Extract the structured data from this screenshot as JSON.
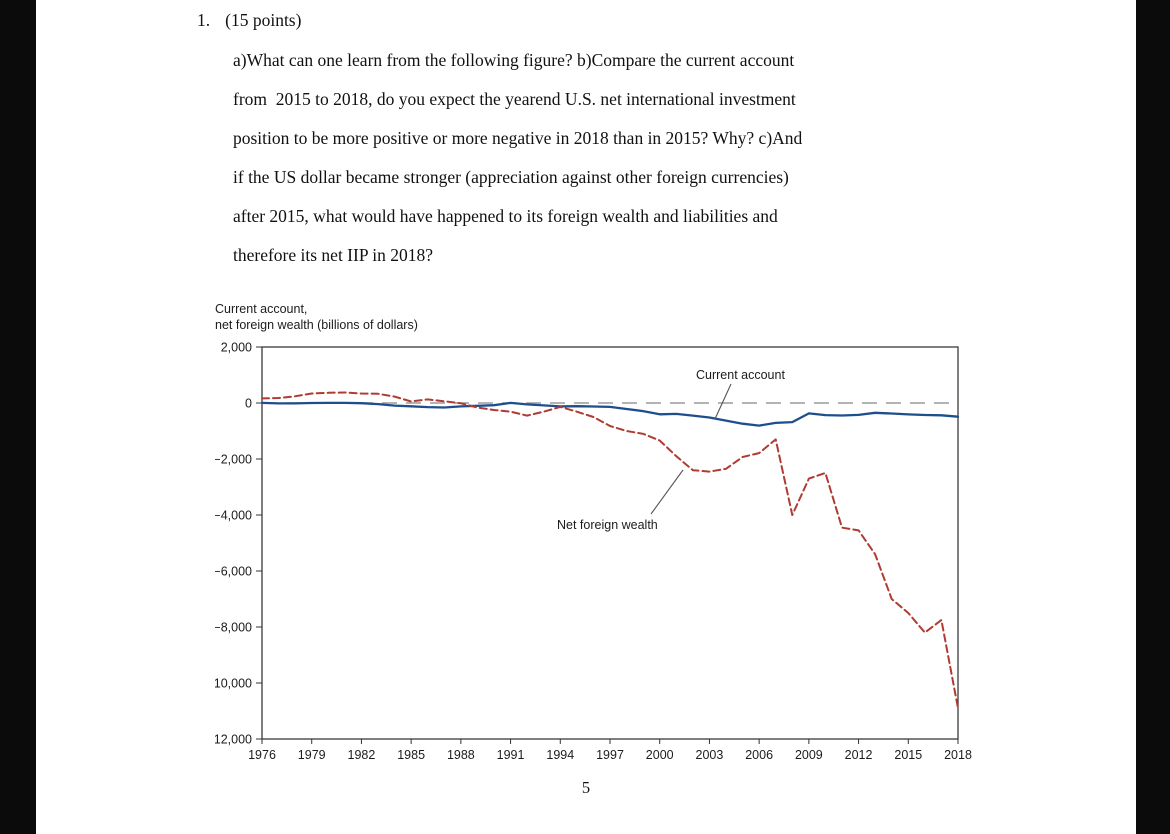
{
  "page": {
    "question_number": "1.",
    "points_label": "(15 points)",
    "paragraph_lines": [
      "a)What can one learn from the following figure? b)Compare the current account",
      "from  2015 to 2018, do you expect the yearend U.S. net international investment",
      "position to be more positive or more negative in 2018 than in 2015? Why? c)And",
      "if the US dollar became stronger (appreciation against other foreign currencies)",
      "after 2015, what would have happened to its foreign wealth and liabilities and",
      "therefore its net IIP in 2018?"
    ],
    "page_number": "5"
  },
  "chart_data": {
    "type": "line",
    "title": "",
    "ylabel_lines": [
      "Current account,",
      "net foreign wealth (billions of dollars)"
    ],
    "xlabel": "",
    "xlim": [
      1976,
      2018
    ],
    "ylim": [
      -12000,
      2000
    ],
    "grid": "zero-line-only",
    "zero_line_style": "dashed-gray",
    "legend_position": "inline-annotations",
    "x_ticks": [
      1976,
      1979,
      1982,
      1985,
      1988,
      1991,
      1994,
      1997,
      2000,
      2003,
      2006,
      2009,
      2012,
      2015,
      2018
    ],
    "y_ticks": [
      2000,
      0,
      -2000,
      -4000,
      -6000,
      -8000,
      -10000,
      -12000
    ],
    "y_tick_labels": [
      "2,000",
      "0",
      "−2,000",
      "−4,000",
      "−6,000",
      "−8,000",
      "−10,000",
      "−12,000"
    ],
    "x": [
      1976,
      1977,
      1978,
      1979,
      1980,
      1981,
      1982,
      1983,
      1984,
      1985,
      1986,
      1987,
      1988,
      1989,
      1990,
      1991,
      1992,
      1993,
      1994,
      1995,
      1996,
      1997,
      1998,
      1999,
      2000,
      2001,
      2002,
      2003,
      2004,
      2005,
      2006,
      2007,
      2008,
      2009,
      2010,
      2011,
      2012,
      2013,
      2014,
      2015,
      2016,
      2017,
      2018
    ],
    "series": [
      {
        "name": "Current account",
        "color": "#1f4e8c",
        "style": "solid",
        "values": [
          4,
          -14,
          -15,
          0,
          2,
          5,
          -6,
          -38,
          -94,
          -118,
          -147,
          -160,
          -121,
          -99,
          -79,
          3,
          -50,
          -85,
          -122,
          -114,
          -125,
          -141,
          -215,
          -288,
          -403,
          -389,
          -451,
          -519,
          -629,
          -739,
          -806,
          -711,
          -681,
          -372,
          -431,
          -446,
          -426,
          -349,
          -374,
          -408,
          -428,
          -439,
          -488
        ]
      },
      {
        "name": "Net foreign wealth",
        "color": "#b03b32",
        "style": "dashed",
        "values": [
          165,
          180,
          240,
          340,
          365,
          374,
          340,
          330,
          230,
          55,
          130,
          60,
          -10,
          -160,
          -250,
          -310,
          -450,
          -310,
          -140,
          -310,
          -500,
          -820,
          -1000,
          -1100,
          -1340,
          -1900,
          -2400,
          -2450,
          -2350,
          -1930,
          -1790,
          -1300,
          -4000,
          -2700,
          -2500,
          -4450,
          -4550,
          -5400,
          -7000,
          -7500,
          -8200,
          -7750,
          -10900
        ]
      }
    ]
  }
}
